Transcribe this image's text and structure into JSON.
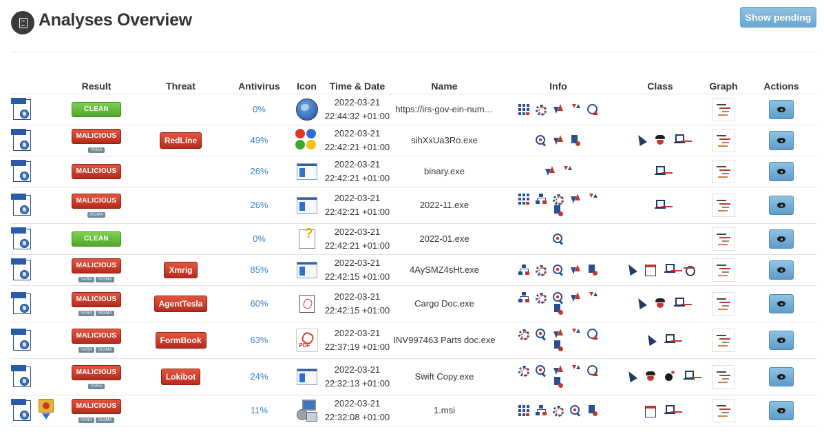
{
  "page": {
    "title": "Analyses Overview",
    "pending_button": "Show pending"
  },
  "table": {
    "headers": {
      "result": "Result",
      "threat": "Threat",
      "antivirus": "Antivirus",
      "icon": "Icon",
      "datetime": "Time & Date",
      "name": "Name",
      "info": "Info",
      "class": "Class",
      "graph": "Graph",
      "actions": "Actions"
    },
    "rows": [
      {
        "source_icons": [
          "html-report"
        ],
        "result": "CLEAN",
        "tags": [],
        "threat": "",
        "antivirus": "0%",
        "file_icon": "globe",
        "date": "2022-03-21",
        "time": "22:44:32 +01:00",
        "name": "https://irs-gov-ein-num…",
        "info": [
          "grid",
          "gears",
          "updown",
          "http",
          "clock"
        ],
        "class": []
      },
      {
        "source_icons": [
          "html-report"
        ],
        "result": "MALICIOUS",
        "tags": [
          "YARA"
        ],
        "threat": "RedLine",
        "antivirus": "49%",
        "file_icon": "windows",
        "date": "2022-03-21",
        "time": "22:42:21 +01:00",
        "name": "sihXxUa3Ro.exe",
        "info": [
          "search",
          "updown",
          "fileplus"
        ],
        "class": [
          "cursor",
          "spy",
          "netpc"
        ]
      },
      {
        "source_icons": [
          "html-report"
        ],
        "result": "MALICIOUS",
        "tags": [],
        "threat": "",
        "antivirus": "26%",
        "file_icon": "exe",
        "date": "2022-03-21",
        "time": "22:42:21 +01:00",
        "name": "binary.exe",
        "info": [
          "updown",
          "http"
        ],
        "class": [
          "netpc"
        ]
      },
      {
        "source_icons": [
          "html-report"
        ],
        "result": "MALICIOUS",
        "tags": [
          "SIGMA"
        ],
        "threat": "",
        "antivirus": "26%",
        "file_icon": "exe",
        "date": "2022-03-21",
        "time": "22:42:21 +01:00",
        "name": "2022-11.exe",
        "info": [
          "grid",
          "tree",
          "gears",
          "updown",
          "http",
          "fileplus"
        ],
        "class": [
          "netpc"
        ]
      },
      {
        "source_icons": [
          "html-report"
        ],
        "result": "CLEAN",
        "tags": [],
        "threat": "",
        "antivirus": "0%",
        "file_icon": "unknown",
        "date": "2022-03-21",
        "time": "22:42:21 +01:00",
        "name": "2022-01.exe",
        "info": [
          "search"
        ],
        "class": []
      },
      {
        "source_icons": [
          "html-report"
        ],
        "result": "MALICIOUS",
        "tags": [
          "YARA",
          "SIGMA"
        ],
        "threat": "Xmrig",
        "antivirus": "85%",
        "file_icon": "exe",
        "date": "2022-03-21",
        "time": "22:42:15 +01:00",
        "name": "4AySMZ4sHt.exe",
        "info": [
          "tree",
          "gears",
          "search",
          "updown",
          "fileplus"
        ],
        "class": [
          "cursor",
          "window",
          "netpc",
          "bug"
        ]
      },
      {
        "source_icons": [
          "html-report"
        ],
        "result": "MALICIOUS",
        "tags": [
          "YARA",
          "SIGMA"
        ],
        "threat": "AgentTesla",
        "antivirus": "60%",
        "file_icon": "pdf-small",
        "date": "2022-03-21",
        "time": "22:42:15 +01:00",
        "name": "Cargo Doc.exe",
        "info": [
          "tree",
          "gears",
          "search",
          "updown",
          "http",
          "fileplus"
        ],
        "class": [
          "cursor",
          "spy",
          "netpc"
        ]
      },
      {
        "source_icons": [
          "html-report"
        ],
        "result": "MALICIOUS",
        "tags": [
          "YARA",
          "SIGMA"
        ],
        "threat": "FormBook",
        "antivirus": "63%",
        "file_icon": "pdf",
        "file_icon_label": "PDF",
        "date": "2022-03-21",
        "time": "22:37:19 +01:00",
        "name": "INV997463 Parts doc.exe",
        "info": [
          "gears",
          "search",
          "updown",
          "http",
          "clock",
          "fileplus"
        ],
        "class": [
          "cursor",
          "netpc"
        ]
      },
      {
        "source_icons": [
          "html-report"
        ],
        "result": "MALICIOUS",
        "tags": [
          "YARA"
        ],
        "threat": "Lokibot",
        "antivirus": "24%",
        "file_icon": "exe",
        "date": "2022-03-21",
        "time": "22:32:13 +01:00",
        "name": "Swift Copy.exe",
        "info": [
          "gears",
          "search",
          "updown",
          "http",
          "clock",
          "fileplus"
        ],
        "class": [
          "cursor",
          "spy",
          "bomb",
          "netpc"
        ]
      },
      {
        "source_icons": [
          "html-report",
          "archive-download"
        ],
        "result": "MALICIOUS",
        "tags": [
          "YARA",
          "SIGMA"
        ],
        "threat": "",
        "antivirus": "11%",
        "file_icon": "msi",
        "date": "2022-03-21",
        "time": "22:32:08 +01:00",
        "name": "1.msi",
        "info": [
          "grid",
          "tree",
          "gears",
          "search",
          "fileplus"
        ],
        "class": [
          "window",
          "netpc"
        ]
      }
    ]
  },
  "colors": {
    "clean": "#4fa82a",
    "malicious": "#b62b1d",
    "antivirus_link": "#3d7fbf",
    "button_blue": "#6ba7d0"
  }
}
